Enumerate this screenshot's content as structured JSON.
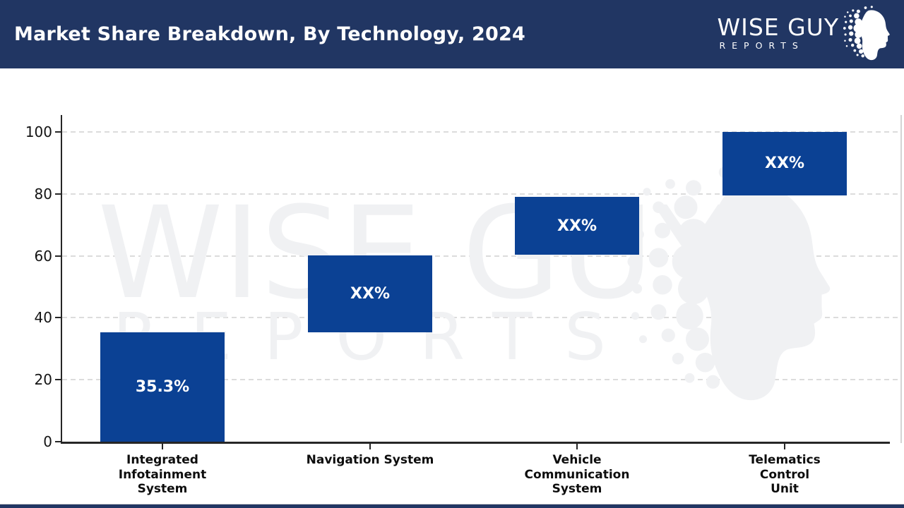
{
  "header": {
    "title": "Market Share Breakdown, By Technology, 2024",
    "brand": {
      "wordmark": "WISE GUY",
      "reports": "REPORTS"
    }
  },
  "watermark": {
    "wordmark": "WISE GUY",
    "reports": "REPORTS"
  },
  "footer": {},
  "chart_data": {
    "type": "bar",
    "subtype": "waterfall",
    "title": "Market Share Breakdown, By Technology, 2024",
    "xlabel": "",
    "ylabel": "",
    "ylim": [
      0,
      100
    ],
    "yticks": [
      0,
      20,
      40,
      60,
      80,
      100
    ],
    "grid": true,
    "grid_style": "dashed",
    "bar_color": "#0b4194",
    "value_label_color": "#ffffff",
    "categories": [
      "Integrated\nInfotainment\nSystem",
      "Navigation System",
      "Vehicle\nCommunication\nSystem",
      "Telematics Control\nUnit"
    ],
    "bars": [
      {
        "category": "Integrated Infotainment System",
        "start": 0,
        "end": 35.3,
        "value": 35.3,
        "label": "35.3%"
      },
      {
        "category": "Navigation System",
        "start": 35.3,
        "end": 60.1,
        "value": 24.8,
        "label": "XX%"
      },
      {
        "category": "Vehicle Communication System",
        "start": 60.4,
        "end": 79.0,
        "value": 18.6,
        "label": "XX%"
      },
      {
        "category": "Telematics Control Unit",
        "start": 79.5,
        "end": 100,
        "value": 20.5,
        "label": "XX%"
      }
    ]
  }
}
